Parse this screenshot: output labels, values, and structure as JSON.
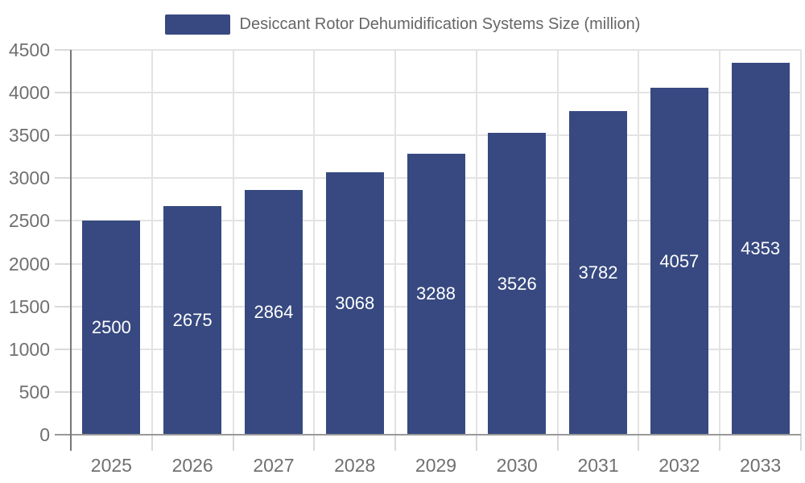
{
  "legend": {
    "label": "Desiccant Rotor Dehumidification Systems Size (million)"
  },
  "colors": {
    "bar": "#374980",
    "bar_label": "#ffffff",
    "axis_label": "#707070",
    "legend_text": "#666666",
    "grid_line": "#e3e3e3",
    "tick_line": "#d9d9d9",
    "x_axis_line": "#999999",
    "y_axis_line": "#777777",
    "background": "#ffffff"
  },
  "chart_data": {
    "type": "bar",
    "title": "Desiccant Rotor Dehumidification Systems Size (million)",
    "series_name": "Desiccant Rotor Dehumidification Systems Size (million)",
    "categories": [
      "2025",
      "2026",
      "2027",
      "2028",
      "2029",
      "2030",
      "2031",
      "2032",
      "2033"
    ],
    "values": [
      2500,
      2675,
      2864,
      3068,
      3288,
      3526,
      3782,
      4057,
      4353
    ],
    "xlabel": "",
    "ylabel": "",
    "ylim": [
      0,
      4500
    ],
    "y_ticks": [
      0,
      500,
      1000,
      1500,
      2000,
      2500,
      3000,
      3500,
      4000,
      4500
    ],
    "grid": true,
    "legend_position": "top",
    "value_labels": "inside-center"
  }
}
